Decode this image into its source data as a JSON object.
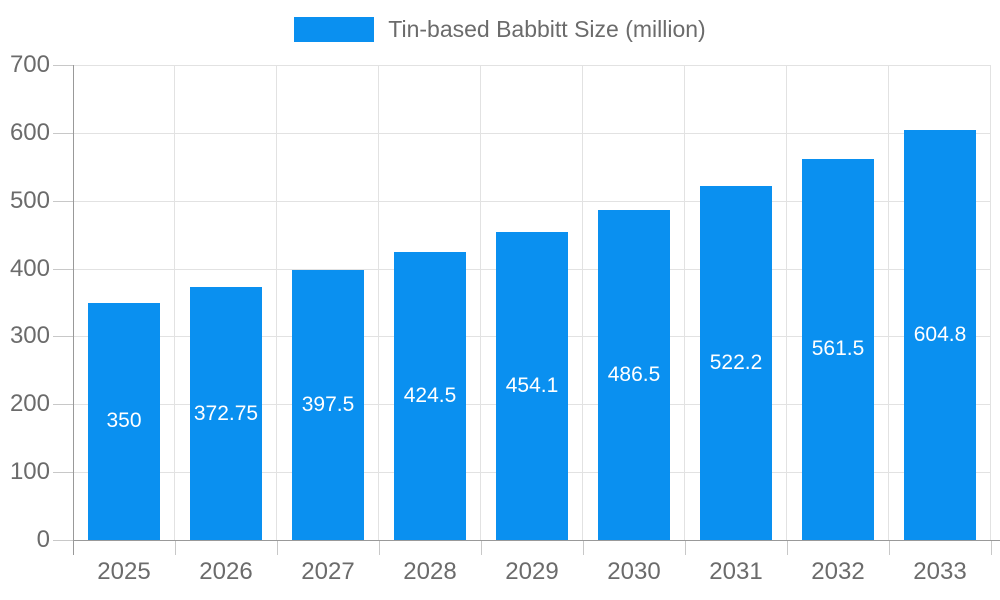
{
  "legend": {
    "label": "Tin-based Babbitt Size (million)"
  },
  "colors": {
    "bar": "#0a90f0",
    "grid": "#e2e2e2",
    "axis": "#999999",
    "tick": "#c8c8c8",
    "text": "#6b6b6b",
    "bar_label": "#ffffff",
    "background": "#ffffff"
  },
  "chart_data": {
    "type": "bar",
    "title": "Tin-based Babbitt Size (million)",
    "legend_entries": [
      "Tin-based Babbitt Size (million)"
    ],
    "legend_position": "top",
    "categories": [
      "2025",
      "2026",
      "2027",
      "2028",
      "2029",
      "2030",
      "2031",
      "2032",
      "2033"
    ],
    "values": [
      350,
      372.75,
      397.5,
      424.5,
      454.1,
      486.5,
      522.2,
      561.5,
      604.8
    ],
    "value_labels": [
      "350",
      "372.75",
      "397.5",
      "424.5",
      "454.1",
      "486.5",
      "522.2",
      "561.5",
      "604.8"
    ],
    "xlabel": "",
    "ylabel": "",
    "ylim": [
      0,
      700
    ],
    "ytick_step": 100,
    "yticks": [
      0,
      100,
      200,
      300,
      400,
      500,
      600,
      700
    ],
    "grid": true,
    "bar_color": "#0a90f0",
    "value_label_position": "center"
  }
}
